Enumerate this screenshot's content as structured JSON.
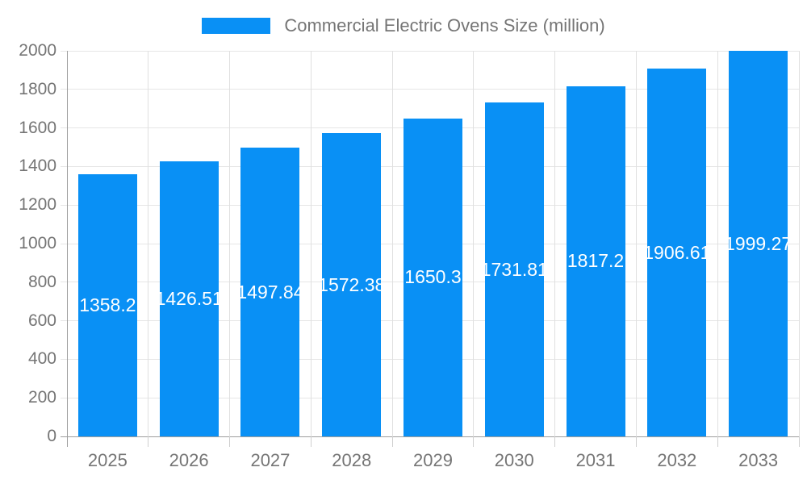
{
  "page": {
    "background": "#ffffff"
  },
  "legend": {
    "label": "Commercial Electric Ovens Size (million)",
    "swatch_color": "#0990f5",
    "position": "top-center"
  },
  "chart_data": {
    "type": "bar",
    "title": "Commercial Electric Ovens Size (million)",
    "categories": [
      "2025",
      "2026",
      "2027",
      "2028",
      "2029",
      "2030",
      "2031",
      "2032",
      "2033"
    ],
    "values": [
      1358.2,
      1426.51,
      1497.84,
      1572.38,
      1650.3,
      1731.81,
      1817.2,
      1906.61,
      1999.27
    ],
    "bar_labels": [
      "1358.2",
      "1426.51",
      "1497.84",
      "1572.38",
      "1650.3",
      "1731.81",
      "1817.2",
      "1906.61",
      "1999.27"
    ],
    "xlabel": "",
    "ylabel": "",
    "ylim": [
      0,
      2000
    ],
    "yticks": [
      0,
      200,
      400,
      600,
      800,
      1000,
      1200,
      1400,
      1600,
      1800,
      2000
    ],
    "grid": true,
    "legend_position": "top-center",
    "bar_color": "#0990f5",
    "value_label_color": "#ffffff",
    "axis_text_color": "#757575",
    "gridline_color": "#e6e6e6",
    "axis_line_color": "#9e9e9e"
  }
}
